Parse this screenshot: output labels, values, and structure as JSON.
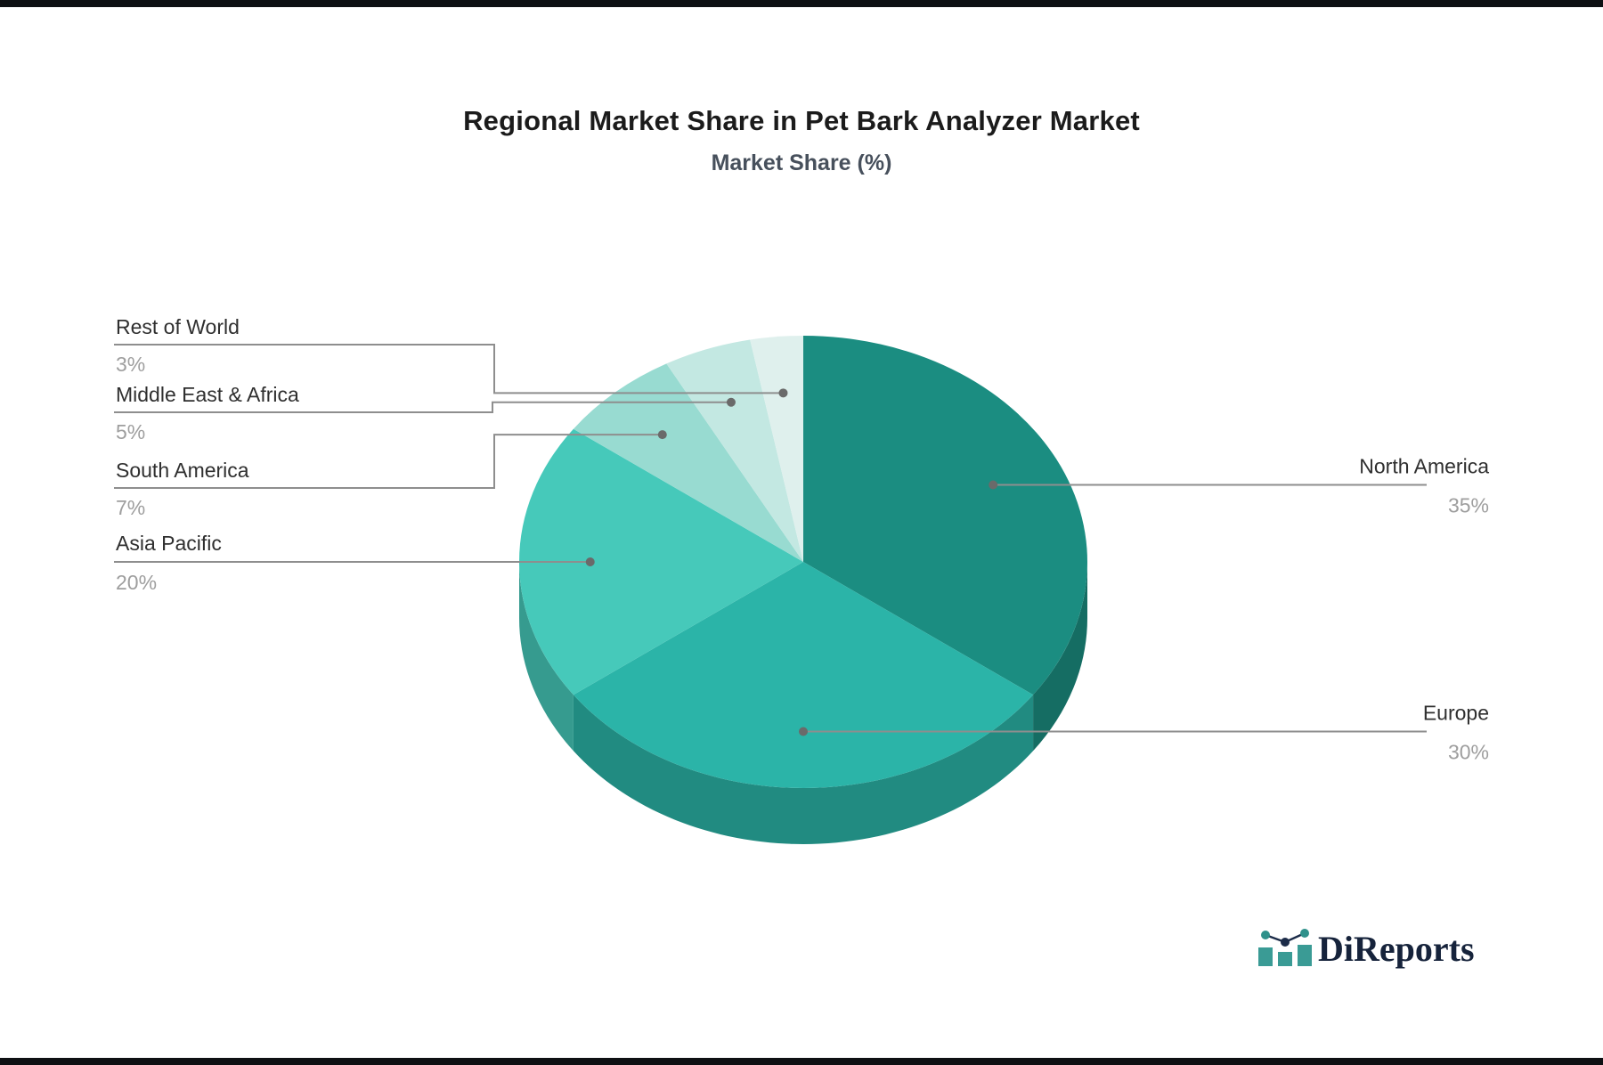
{
  "page": {
    "title": "Regional Market Share in Pet Bark Analyzer Market",
    "subtitle": "Market Share (%)"
  },
  "brand": {
    "name": "DiReports"
  },
  "chart_data": {
    "type": "pie",
    "style": "3d",
    "title": "Regional Market Share in Pet Bark Analyzer Market",
    "subtitle": "Market Share (%)",
    "unit": "%",
    "start_angle_deg": 0,
    "direction": "clockwise",
    "slices": [
      {
        "label": "North America",
        "value": 35,
        "color": "#1B8D81"
      },
      {
        "label": "Europe",
        "value": 30,
        "color": "#2BB4A8"
      },
      {
        "label": "Asia Pacific",
        "value": 20,
        "color": "#46C9BA"
      },
      {
        "label": "South America",
        "value": 7,
        "color": "#98DBD1"
      },
      {
        "label": "Middle East & Africa",
        "value": 5,
        "color": "#C3E8E2"
      },
      {
        "label": "Rest of World",
        "value": 3,
        "color": "#DFF0ED"
      }
    ],
    "legend_position": "callout-labels",
    "leader_line_color": "#8E8E8E",
    "leader_dot_color": "#6A6A6A",
    "label_color": "#2F2F2F",
    "value_color": "#9E9E9E"
  }
}
